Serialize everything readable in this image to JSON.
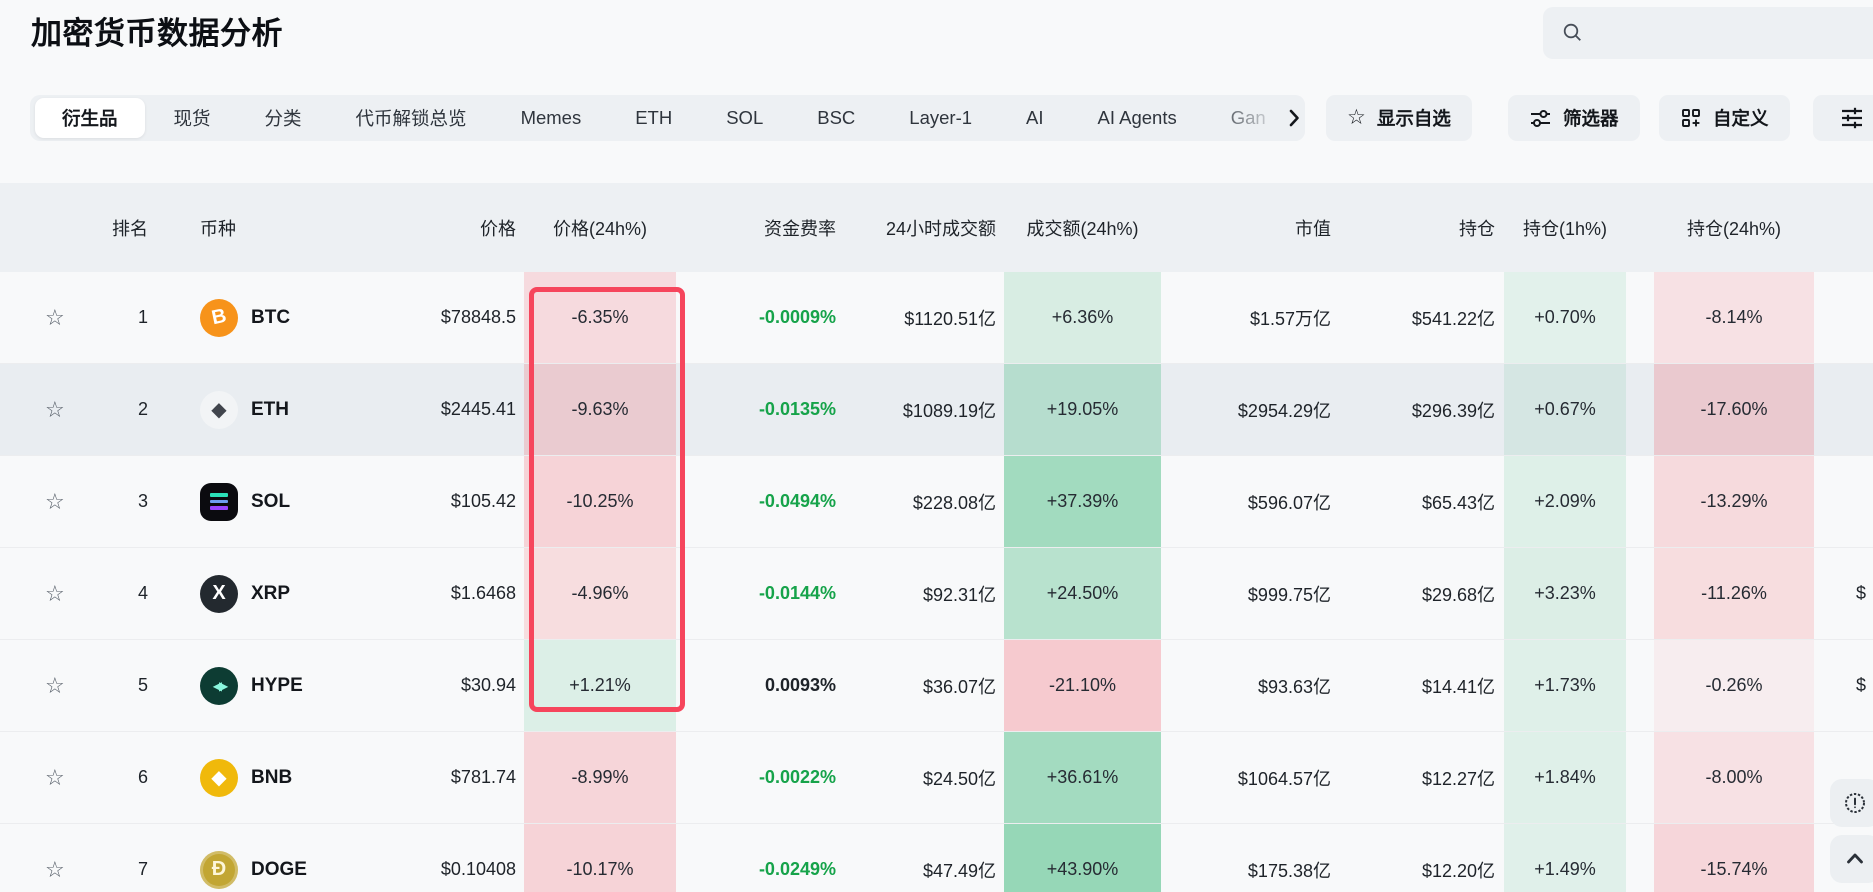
{
  "page": {
    "title": "加密货币数据分析"
  },
  "search": {
    "value": "",
    "placeholder": "",
    "icon": "search-icon"
  },
  "tabs": {
    "items": [
      {
        "label": "衍生品",
        "active": true
      },
      {
        "label": "现货",
        "active": false
      },
      {
        "label": "分类",
        "active": false
      },
      {
        "label": "代币解锁总览",
        "active": false
      },
      {
        "label": "Memes",
        "active": false
      },
      {
        "label": "ETH",
        "active": false
      },
      {
        "label": "SOL",
        "active": false
      },
      {
        "label": "BSC",
        "active": false
      },
      {
        "label": "Layer-1",
        "active": false
      },
      {
        "label": "AI",
        "active": false
      },
      {
        "label": "AI Agents",
        "active": false
      },
      {
        "label": "Gan",
        "active": false,
        "truncated": true
      }
    ]
  },
  "toolbar": {
    "buttons": [
      {
        "id": "show-watchlist",
        "label": "显示自选",
        "icon": "star-icon"
      },
      {
        "id": "filters",
        "label": "筛选器",
        "icon": "sliders-icon"
      },
      {
        "id": "customize",
        "label": "自定义",
        "icon": "grid-plus-icon"
      },
      {
        "id": "adjust-columns",
        "label": "",
        "icon": "adjust-lines-icon"
      }
    ]
  },
  "table": {
    "columns": [
      {
        "key": "rank",
        "label": "排名",
        "grid": 2,
        "align": "right"
      },
      {
        "key": "coin",
        "label": "币种",
        "grid": 3,
        "align": "left"
      },
      {
        "key": "price",
        "label": "价格",
        "grid": 4,
        "align": "right"
      },
      {
        "key": "price_chg_24h",
        "label": "价格(24h%)",
        "grid": 6,
        "align": "center"
      },
      {
        "key": "funding_rate",
        "label": "资金费率",
        "grid": 7,
        "align": "right"
      },
      {
        "key": "volume_24h",
        "label": "24小时成交额",
        "grid": 8,
        "align": "right"
      },
      {
        "key": "volume_chg_24h",
        "label": "成交额(24h%)",
        "grid": 10,
        "align": "center"
      },
      {
        "key": "market_cap",
        "label": "市值",
        "grid": 11,
        "align": "right"
      },
      {
        "key": "open_interest",
        "label": "持仓",
        "grid": 12,
        "align": "right"
      },
      {
        "key": "oi_chg_1h",
        "label": "持仓(1h%)",
        "grid": 14,
        "align": "center"
      },
      {
        "key": "oi_chg_24h",
        "label": "持仓(24h%)",
        "grid": 16,
        "align": "center"
      }
    ],
    "rows": [
      {
        "rank": "1",
        "symbol": "BTC",
        "icon": {
          "shape": "circle",
          "bg": "#f7931a",
          "fg": "#ffffff",
          "glyph": "B",
          "rotate": true
        },
        "price": "$78848.5",
        "price_chg_24h": "-6.35%",
        "funding_rate": "-0.0009%",
        "volume_24h": "$1120.51亿",
        "volume_chg_24h": "+6.36%",
        "market_cap": "$1.57万亿",
        "open_interest": "$541.22亿",
        "oi_chg_1h": "+0.70%",
        "oi_chg_24h": "-8.14%",
        "edge_fragment": "",
        "highlighted": false
      },
      {
        "rank": "2",
        "symbol": "ETH",
        "icon": {
          "shape": "circle",
          "bg": "#f2f4f6",
          "fg": "#41454d",
          "glyph": "◆"
        },
        "price": "$2445.41",
        "price_chg_24h": "-9.63%",
        "funding_rate": "-0.0135%",
        "volume_24h": "$1089.19亿",
        "volume_chg_24h": "+19.05%",
        "market_cap": "$2954.29亿",
        "open_interest": "$296.39亿",
        "oi_chg_1h": "+0.67%",
        "oi_chg_24h": "-17.60%",
        "edge_fragment": "",
        "highlighted": true
      },
      {
        "rank": "3",
        "symbol": "SOL",
        "icon": {
          "shape": "square",
          "bg": "#0b0b0f",
          "glyph": "bars",
          "colors": [
            "#2be0b8",
            "#6f9df0",
            "#9a45ff"
          ]
        },
        "price": "$105.42",
        "price_chg_24h": "-10.25%",
        "funding_rate": "-0.0494%",
        "volume_24h": "$228.08亿",
        "volume_chg_24h": "+37.39%",
        "market_cap": "$596.07亿",
        "open_interest": "$65.43亿",
        "oi_chg_1h": "+2.09%",
        "oi_chg_24h": "-13.29%",
        "edge_fragment": "",
        "highlighted": false
      },
      {
        "rank": "4",
        "symbol": "XRP",
        "icon": {
          "shape": "circle",
          "bg": "#23292f",
          "fg": "#ffffff",
          "glyph": "X"
        },
        "price": "$1.6468",
        "price_chg_24h": "-4.96%",
        "funding_rate": "-0.0144%",
        "volume_24h": "$92.31亿",
        "volume_chg_24h": "+24.50%",
        "market_cap": "$999.75亿",
        "open_interest": "$29.68亿",
        "oi_chg_1h": "+3.23%",
        "oi_chg_24h": "-11.26%",
        "edge_fragment": "$",
        "highlighted": false
      },
      {
        "rank": "5",
        "symbol": "HYPE",
        "icon": {
          "shape": "circle",
          "bg": "#0d3c33",
          "fg": "#8bf7de",
          "glyph": "◀▶",
          "small": true
        },
        "price": "$30.94",
        "price_chg_24h": "+1.21%",
        "funding_rate": "0.0093%",
        "volume_24h": "$36.07亿",
        "volume_chg_24h": "-21.10%",
        "market_cap": "$93.63亿",
        "open_interest": "$14.41亿",
        "oi_chg_1h": "+1.73%",
        "oi_chg_24h": "-0.26%",
        "edge_fragment": "$",
        "highlighted": false
      },
      {
        "rank": "6",
        "symbol": "BNB",
        "icon": {
          "shape": "circle",
          "bg": "#f0b90b",
          "fg": "#ffffff",
          "glyph": "◆"
        },
        "price": "$781.74",
        "price_chg_24h": "-8.99%",
        "funding_rate": "-0.0022%",
        "volume_24h": "$24.50亿",
        "volume_chg_24h": "+36.61%",
        "market_cap": "$1064.57亿",
        "open_interest": "$12.27亿",
        "oi_chg_1h": "+1.84%",
        "oi_chg_24h": "-8.00%",
        "edge_fragment": "",
        "highlighted": false
      },
      {
        "rank": "7",
        "symbol": "DOGE",
        "icon": {
          "shape": "circle",
          "bg": "#c2a633",
          "fg": "#fdf6d8",
          "glyph": "Ð",
          "ring": true
        },
        "price": "$0.10408",
        "price_chg_24h": "-10.17%",
        "funding_rate": "-0.0249%",
        "volume_24h": "$47.49亿",
        "volume_chg_24h": "+43.90%",
        "market_cap": "$175.38亿",
        "open_interest": "$12.20亿",
        "oi_chg_1h": "+1.49%",
        "oi_chg_24h": "-15.74%",
        "edge_fragment": "",
        "highlighted": false
      }
    ]
  },
  "annotation": {
    "type": "highlight-box",
    "column": "价格(24h%)",
    "rows_covered": [
      "BTC",
      "ETH",
      "SOL",
      "XRP",
      "HYPE"
    ],
    "color": "#f6455c"
  },
  "floating_buttons": [
    {
      "id": "alerts",
      "icon": "badge-alert-icon"
    },
    {
      "id": "back-to-top",
      "icon": "chevron-up-icon"
    }
  ],
  "colors": {
    "page_bg": "#f8f9fa",
    "panel_bg": "#edf0f3",
    "row_highlight": "#e9edf1",
    "green_text": "#16a34a",
    "text_primary": "#1e2329",
    "annotation_red": "#f6455c",
    "tint_green_rgb": "21,170,95",
    "tint_red_rgb": "240,68,82"
  }
}
